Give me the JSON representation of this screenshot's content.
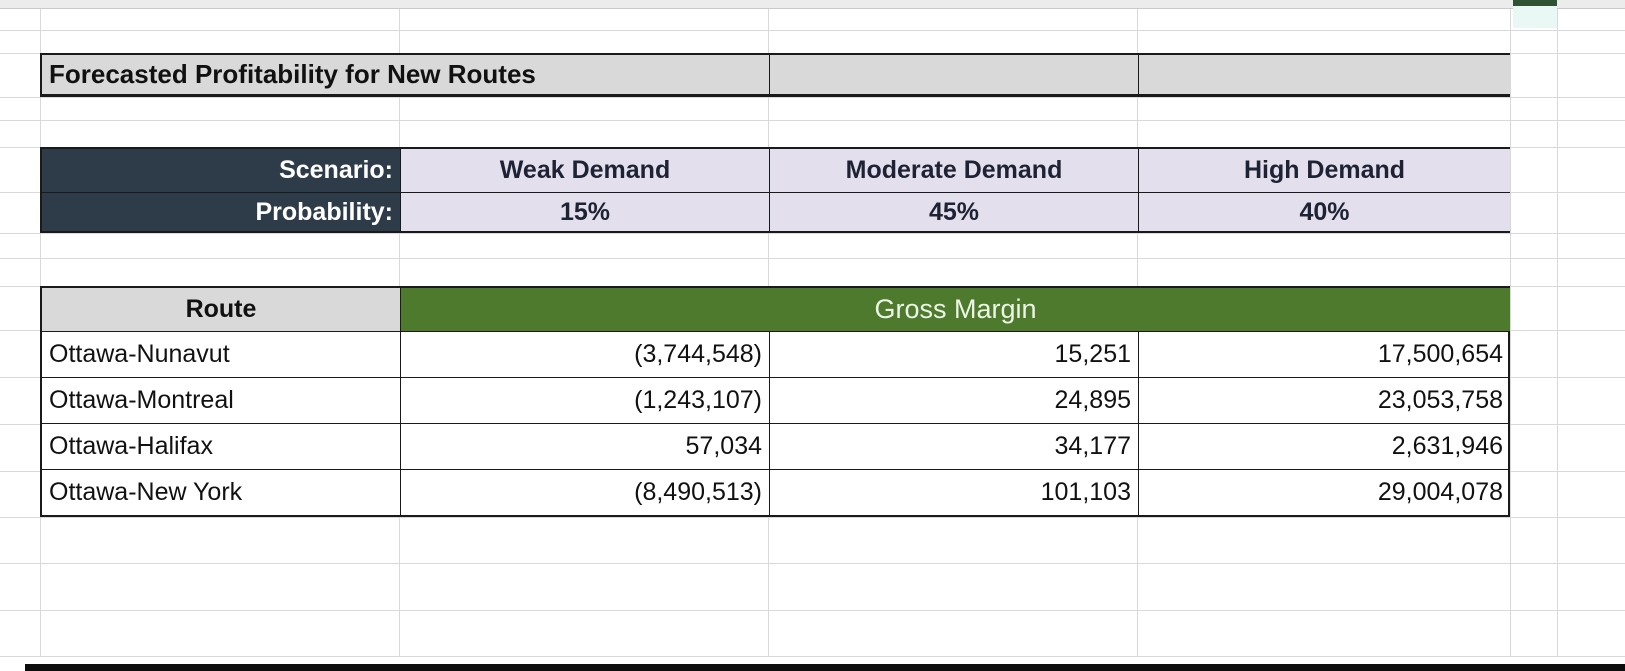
{
  "title": "Forecasted Profitability for New Routes",
  "scenario_table": {
    "row_labels": [
      "Scenario:",
      "Probability:"
    ],
    "scenarios": [
      "Weak Demand",
      "Moderate Demand",
      "High Demand"
    ],
    "probabilities": [
      "15%",
      "45%",
      "40%"
    ]
  },
  "routes_table": {
    "route_header": "Route",
    "margin_header": "Gross Margin",
    "rows": [
      {
        "route": "Ottawa-Nunavut",
        "values": [
          "(3,744,548)",
          "15,251",
          "17,500,654"
        ]
      },
      {
        "route": "Ottawa-Montreal",
        "values": [
          "(1,243,107)",
          "24,895",
          "23,053,758"
        ]
      },
      {
        "route": "Ottawa-Halifax",
        "values": [
          "57,034",
          "34,177",
          "2,631,946"
        ]
      },
      {
        "route": "Ottawa-New York",
        "values": [
          "(8,490,513)",
          "101,103",
          "29,004,078"
        ]
      }
    ]
  },
  "colors": {
    "header_dark": "#2e3b48",
    "scenario_fill": "#e4dfec",
    "title_fill": "#d9d9d9",
    "margin_header_fill": "#4d7a2d",
    "gridline": "#d9d9d9"
  }
}
